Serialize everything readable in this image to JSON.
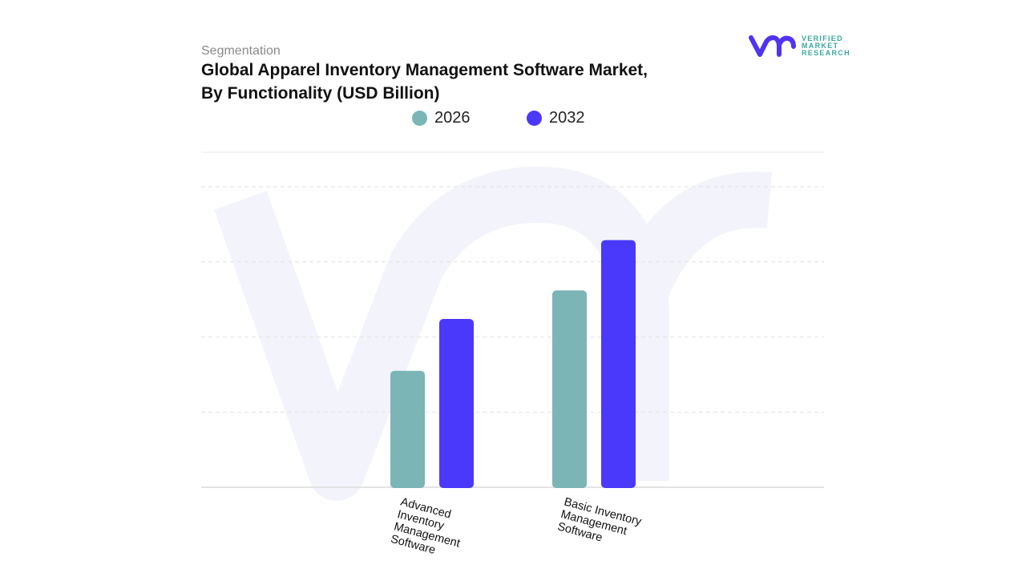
{
  "header": {
    "segment_label": "Segmentation",
    "title": "Global Apparel Inventory Management Software Market, By Functionality (USD Billion)"
  },
  "logo": {
    "lines": [
      "VERIFIED",
      "MARKET",
      "RESEARCH"
    ],
    "mark": "vmr",
    "color": "#5034f0",
    "text_color": "#3aa8a0"
  },
  "chart_data": {
    "type": "bar",
    "title": "Global Apparel Inventory Management Software Market, By Functionality (USD Billion)",
    "categories": [
      "Advanced Inventory Management Software",
      "Basic Inventory Management Software"
    ],
    "series": [
      {
        "name": "2026",
        "color": "#7bb5b6",
        "values": [
          1.55,
          2.62
        ]
      },
      {
        "name": "2032",
        "color": "#4b39fb",
        "values": [
          2.24,
          3.29
        ]
      }
    ],
    "ylim": [
      0,
      4
    ],
    "y_tick_labels_shown": false,
    "grid": true,
    "legend_position": "top-center",
    "xlabel": "",
    "ylabel": ""
  }
}
